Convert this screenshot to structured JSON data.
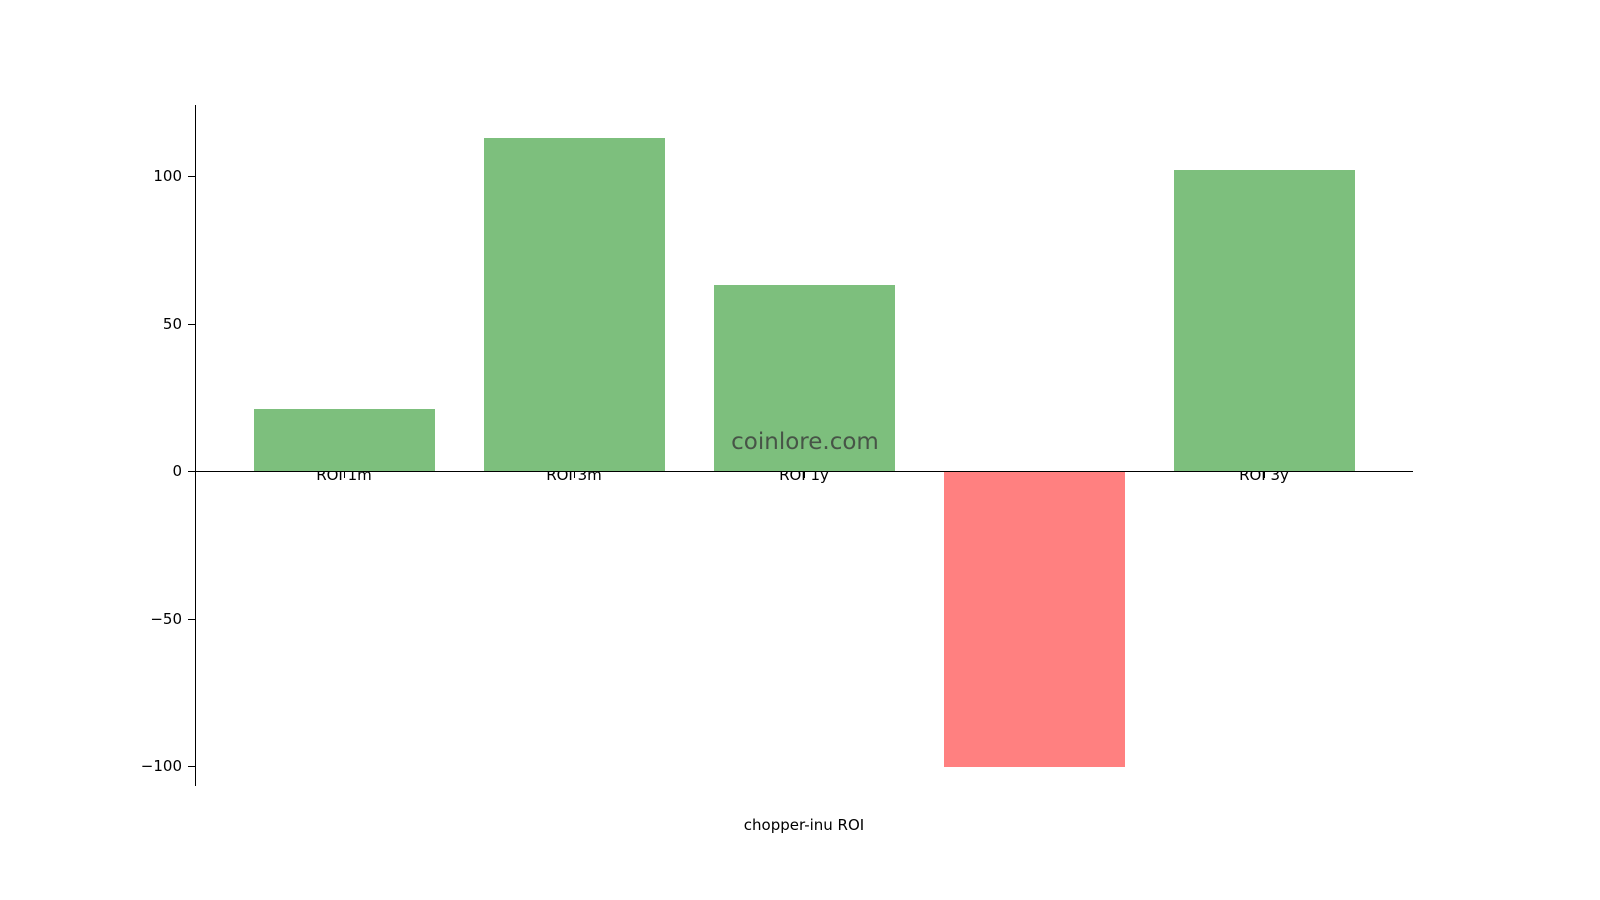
{
  "chart_data": {
    "type": "bar",
    "title": "chopper-inu ROI",
    "categories": [
      "ROI 1m",
      "ROI 3m",
      "ROI 1y",
      "",
      "ROI 3y"
    ],
    "values": [
      21,
      113,
      63,
      -100,
      102
    ],
    "bar_colors": [
      "#7dbf7d",
      "#7dbf7d",
      "#7dbf7d",
      "#ff8080",
      "#7dbf7d"
    ],
    "yticks": [
      100,
      50,
      0,
      -50,
      -100
    ],
    "ylim": [
      -110,
      125
    ],
    "xlabel": "",
    "ylabel": "",
    "grid": false,
    "legend": "none",
    "positive_color": "#7dbf7d",
    "negative_color": "#ff8080",
    "axis_color": "#000000",
    "note_hidden_label": "fourth category tick label is covered by the negative bar"
  },
  "watermark": {
    "text": "coinlore.com",
    "color": "#3c3c3c"
  }
}
